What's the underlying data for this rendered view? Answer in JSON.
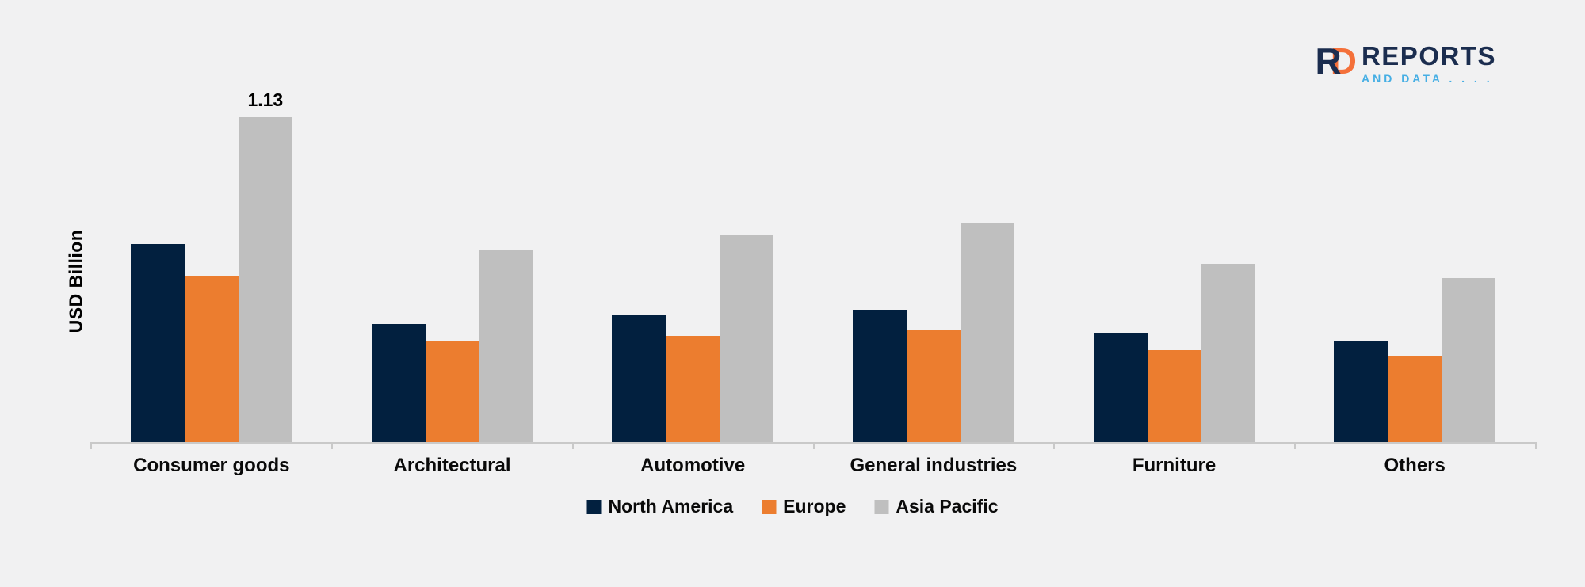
{
  "background": "#F1F1F2",
  "chart_data": {
    "type": "bar",
    "title": "",
    "xlabel": "",
    "ylabel": "USD Billion",
    "categories": [
      "Consumer goods",
      "Architectural",
      "Automotive",
      "General industries",
      "Furniture",
      "Others"
    ],
    "series": [
      {
        "name": "North America",
        "color": "#02203F",
        "values": [
          0.69,
          0.41,
          0.44,
          0.46,
          0.38,
          0.35
        ]
      },
      {
        "name": "Europe",
        "color": "#EC7D2F",
        "values": [
          0.58,
          0.35,
          0.37,
          0.39,
          0.32,
          0.3
        ]
      },
      {
        "name": "Asia Pacific",
        "color": "#BFBFBF",
        "values": [
          1.13,
          0.67,
          0.72,
          0.76,
          0.62,
          0.57
        ],
        "data_labels": [
          "1.13",
          null,
          null,
          null,
          null,
          null
        ]
      }
    ],
    "ylim": [
      0,
      1.25
    ],
    "grid": false,
    "legend_position": "bottom",
    "axis_color": "#C9C9C9"
  },
  "logo": {
    "mark_r": "R",
    "mark_d": "D",
    "title": "REPORTS",
    "subtitle": "AND DATA . . . ."
  }
}
